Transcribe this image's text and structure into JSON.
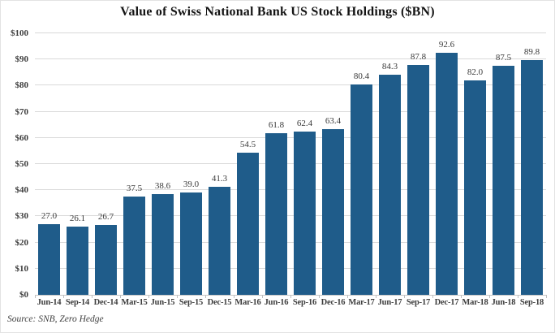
{
  "title": "Value of Swiss National Bank US Stock Holdings ($BN)",
  "source": "Source: SNB, Zero Hedge",
  "colors": {
    "bar": "#1f5c8a",
    "grid": "#d9d9d9",
    "axis": "#c6c6c6",
    "text": "#3d3d3d",
    "title_text": "#141414"
  },
  "chart_data": {
    "type": "bar",
    "title": "Value of Swiss National Bank US Stock Holdings ($BN)",
    "categories": [
      "Jun-14",
      "Sep-14",
      "Dec-14",
      "Mar-15",
      "Jun-15",
      "Sep-15",
      "Dec-15",
      "Mar-16",
      "Jun-16",
      "Sep-16",
      "Dec-16",
      "Mar-17",
      "Jun-17",
      "Sep-17",
      "Dec-17",
      "Mar-18",
      "Jun-18",
      "Sep-18"
    ],
    "values": [
      27.0,
      26.1,
      26.7,
      37.5,
      38.6,
      39.0,
      41.3,
      54.5,
      61.8,
      62.4,
      63.4,
      80.4,
      84.3,
      87.8,
      92.6,
      82.0,
      87.5,
      89.8
    ],
    "value_label_decimals": 1,
    "xlabel": "",
    "ylabel": "",
    "ylim": [
      0,
      100
    ],
    "ytick_step": 10,
    "ytick_prefix": "$",
    "grid": true,
    "legend": false,
    "annotation": "Source: SNB, Zero Hedge"
  }
}
